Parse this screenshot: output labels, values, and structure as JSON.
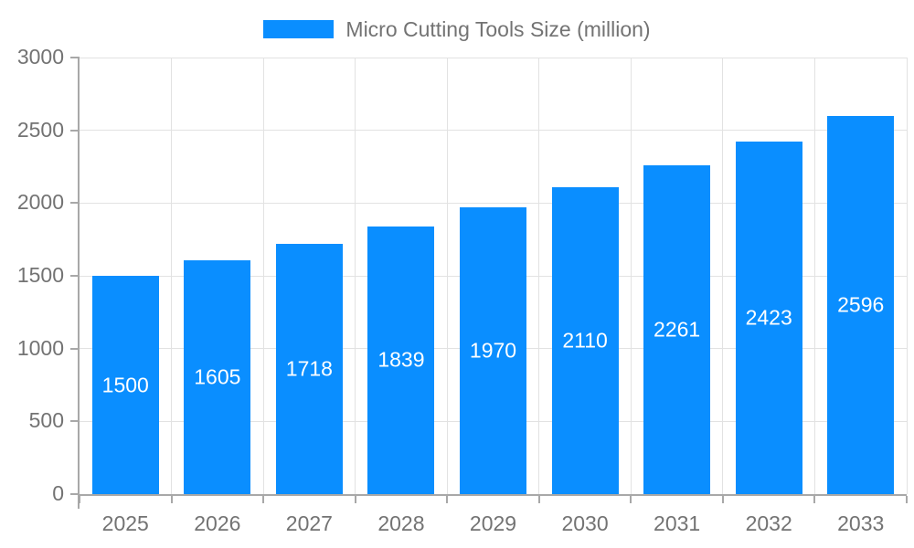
{
  "chart_data": {
    "type": "bar",
    "title": "Micro Cutting Tools Size (million)",
    "categories": [
      "2025",
      "2026",
      "2027",
      "2028",
      "2029",
      "2030",
      "2031",
      "2032",
      "2033"
    ],
    "values": [
      1500,
      1605,
      1718,
      1839,
      1970,
      2110,
      2261,
      2423,
      2596
    ],
    "xlabel": "",
    "ylabel": "",
    "ylim": [
      0,
      3000
    ],
    "yticks": [
      0,
      500,
      1000,
      1500,
      2000,
      2500,
      3000
    ],
    "grid": "on",
    "legend_position": "top-center",
    "value_labels": "inside-center",
    "colors": {
      "bar": "#0a8eff",
      "value_label": "#ffffff",
      "tick_label": "#737373",
      "legend_label": "#737373",
      "grid": "#e2e2e2",
      "axis": "#a8a8a8",
      "background": "#ffffff"
    }
  }
}
